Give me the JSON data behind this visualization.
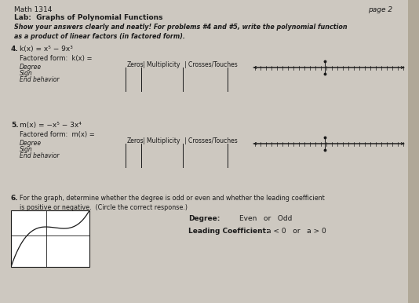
{
  "page_label": "page 2",
  "title_line1": "Math 1314",
  "title_line2": "Lab:  Graphs of Polynomial Functions",
  "instructions": "Show your answers clearly and neatly! For problems #4 and #5, write the polynomial function\nas a product of linear factors (in factored form).",
  "problem4_label": "4.",
  "problem4_func": "k(x) = x⁵ − 9x³",
  "problem4_factored": "Factored form:  k(x) =",
  "problem4_degree": "Degree",
  "problem4_sign": "Sign",
  "problem4_end": "End behavior",
  "problem5_label": "5.",
  "problem5_func": "m(x) = −x⁵ − 3x⁴",
  "problem5_factored": "Factored form:  m(x) =",
  "problem5_degree": "Degree",
  "problem5_sign": "Sign",
  "problem5_end": "End behavior",
  "problem6_label": "6.",
  "problem6_text": "For the graph, determine whether the degree is odd or even and whether the leading coefficient\nis positive or negative.  (Circle the correct response.)",
  "table_header": "Zeros | Multiplicity | Crosses/Touches",
  "degree_label": "Degree:",
  "degree_options": "Even   or   Odd",
  "lc_label": "Leading Coefficient:",
  "lc_options": "a < 0   or   a > 0",
  "bg_color": "#cdc8c0",
  "text_color": "#1a1a1a"
}
